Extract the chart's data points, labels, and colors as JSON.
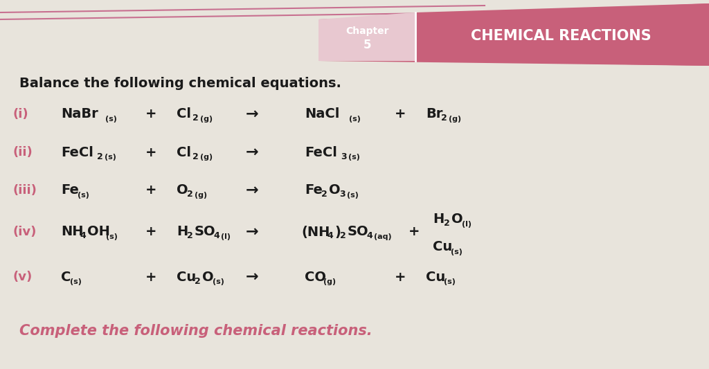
{
  "bg_color": "#d8d4cc",
  "page_color": "#e8e4dc",
  "header_ribbon_color": "#c8607a",
  "header_text": "CHEMICAL REACTIONS",
  "header_chapter": "Chapter",
  "header_number": "5",
  "title": "Balance the following chemical equations.",
  "footer": "Complete the following chemical reactions.",
  "title_color": "#1a1a1a",
  "body_color": "#1a1a1a",
  "footer_color": "#c8607a",
  "number_color": "#c8607a",
  "arrow": "→",
  "pink_line_color": "#c87090"
}
